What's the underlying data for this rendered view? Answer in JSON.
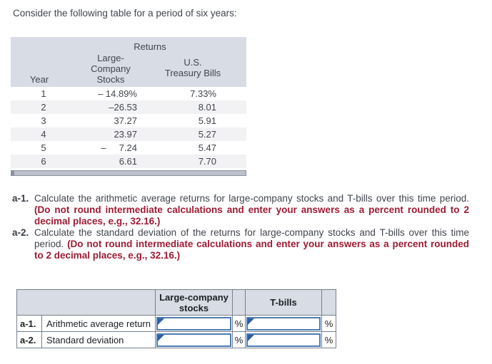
{
  "intro": "Consider the following table for a period of six years:",
  "returns_table": {
    "title": "Returns",
    "col_year": "Year",
    "col_stocks": "Large-\nCompany\nStocks",
    "col_tbills": "U.S.\nTreasury Bills",
    "rows": [
      {
        "year": "1",
        "stocks": "– 14.89%",
        "tbills": "7.33%"
      },
      {
        "year": "2",
        "stocks": "–26.53",
        "tbills": "8.01"
      },
      {
        "year": "3",
        "stocks": "37.27",
        "tbills": "5.91"
      },
      {
        "year": "4",
        "stocks": "23.97",
        "tbills": "5.27"
      },
      {
        "year": "5",
        "stocks": "–     7.24",
        "tbills": "5.47"
      },
      {
        "year": "6",
        "stocks": "6.61",
        "tbills": "7.70"
      }
    ]
  },
  "questions": [
    {
      "label": "a-1.",
      "text": "Calculate the arithmetic average returns for large-company stocks and T-bills over this time period. ",
      "instruction": "(Do not round intermediate calculations and enter your answers as a percent rounded to 2 decimal places, e.g., 32.16.)"
    },
    {
      "label": "a-2.",
      "text": "Calculate the standard deviation of the returns for large-company stocks and T-bills over this time period. ",
      "instruction": "(Do not round intermediate calculations and enter your answers as a percent rounded to 2 decimal places, e.g., 32.16.)"
    }
  ],
  "answer_table": {
    "col_stocks": "Large-company\nstocks",
    "col_tbills": "T-bills",
    "percent": "%",
    "rows": [
      {
        "label": "a-1.",
        "desc": "Arithmetic average return",
        "stocks_value": "",
        "tbills_value": ""
      },
      {
        "label": "a-2.",
        "desc": "Standard deviation",
        "stocks_value": "",
        "tbills_value": ""
      }
    ]
  },
  "colors": {
    "header_bg": "#d7dce5",
    "alt_row_bg": "#f2f2f4",
    "instruction_red": "#9e1b32",
    "input_border_blue": "#4d7bb5",
    "marker_blue": "#2f5fa0",
    "table_border": "#76808d"
  }
}
